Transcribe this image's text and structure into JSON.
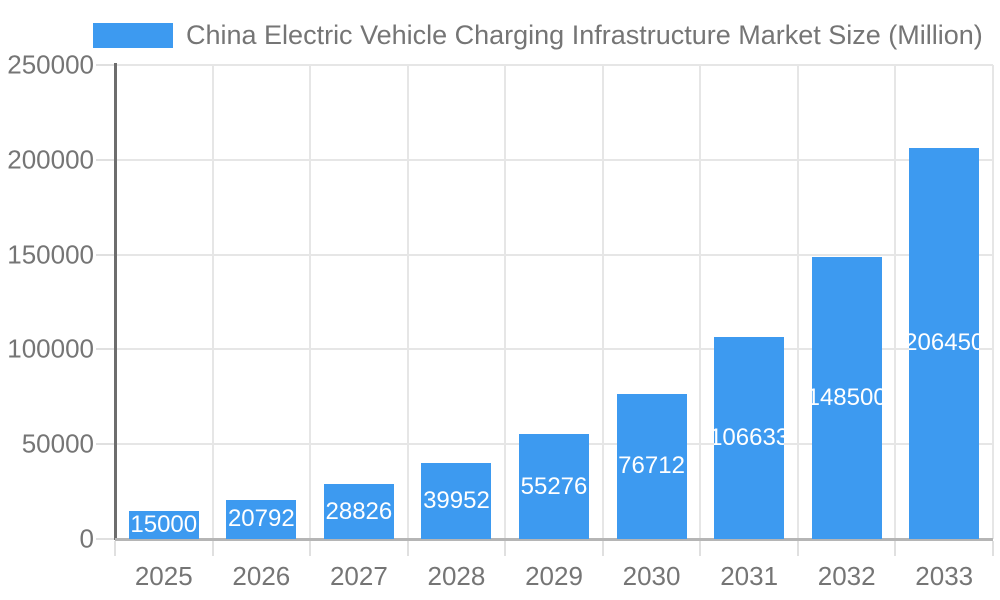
{
  "legend": {
    "swatch_icon": "legend-color-swatch"
  },
  "colors": {
    "bar": "#3D9AF0",
    "annotation_text": "#ffffff",
    "axis_text": "#757575",
    "gridline": "#e6e6e6",
    "tick": "#e0e0e0",
    "axis_line_left": "#6d6d6d",
    "axis_line_bottom": "#b5b5b5",
    "background": "#ffffff"
  },
  "chart_data": {
    "type": "bar",
    "title": "China Electric Vehicle Charging Infrastructure Market Size (Million)",
    "categories": [
      "2025",
      "2026",
      "2027",
      "2028",
      "2029",
      "2030",
      "2031",
      "2032",
      "2033"
    ],
    "values": [
      15000,
      20792,
      28826,
      39952,
      55276,
      76712,
      106633,
      148500,
      206450
    ],
    "annotation_labels": [
      "15000",
      "20792",
      "28826",
      "39952",
      "55276",
      "76712",
      "106633",
      "148500",
      "206450"
    ],
    "xlabel": "",
    "ylabel": "",
    "ylim": [
      0,
      250000
    ],
    "ytick_interval": 50000,
    "ytick_labels": [
      "0",
      "50000",
      "100000",
      "150000",
      "200000",
      "250000"
    ],
    "grid": true,
    "legend_position": "top",
    "bar_color": "#3D9AF0",
    "annotations": "inside-center-white"
  }
}
